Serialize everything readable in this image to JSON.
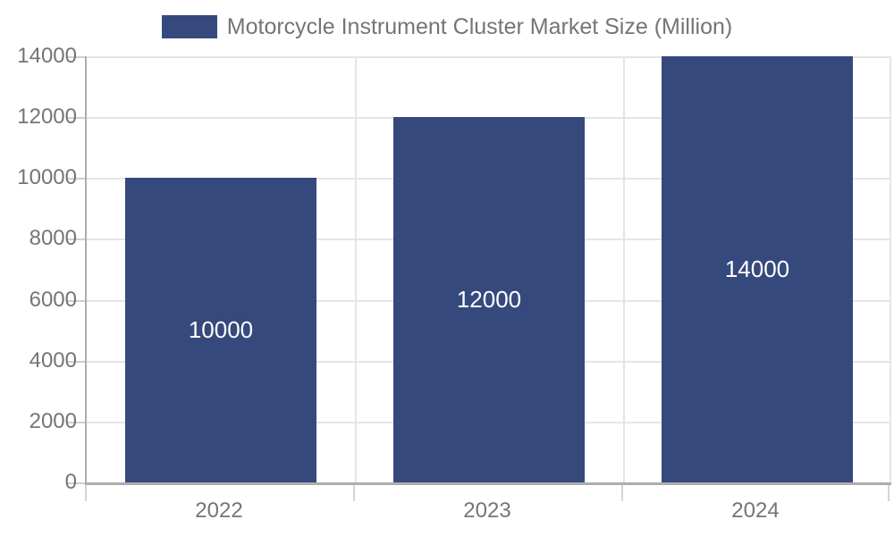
{
  "chart_data": {
    "type": "bar",
    "title": "Motorcycle Instrument Cluster Market Size (Million)",
    "categories": [
      "2022",
      "2023",
      "2024"
    ],
    "values": [
      10000,
      12000,
      14000
    ],
    "bar_labels": [
      "10000",
      "12000",
      "14000"
    ],
    "xlabel": "",
    "ylabel": "",
    "ylim": [
      0,
      14000
    ],
    "ytick_step": 2000,
    "yticks": [
      0,
      2000,
      4000,
      6000,
      8000,
      10000,
      12000,
      14000
    ],
    "grid": true,
    "legend_position": "top-center",
    "colors": {
      "bar": "#36497D",
      "bar_label_text": "#FFFFFF",
      "axis_text": "#757575",
      "title_text": "#757575",
      "gridline": "#E5E5E5",
      "axis_line": "#ADADAD",
      "background": "#FFFFFF"
    }
  }
}
